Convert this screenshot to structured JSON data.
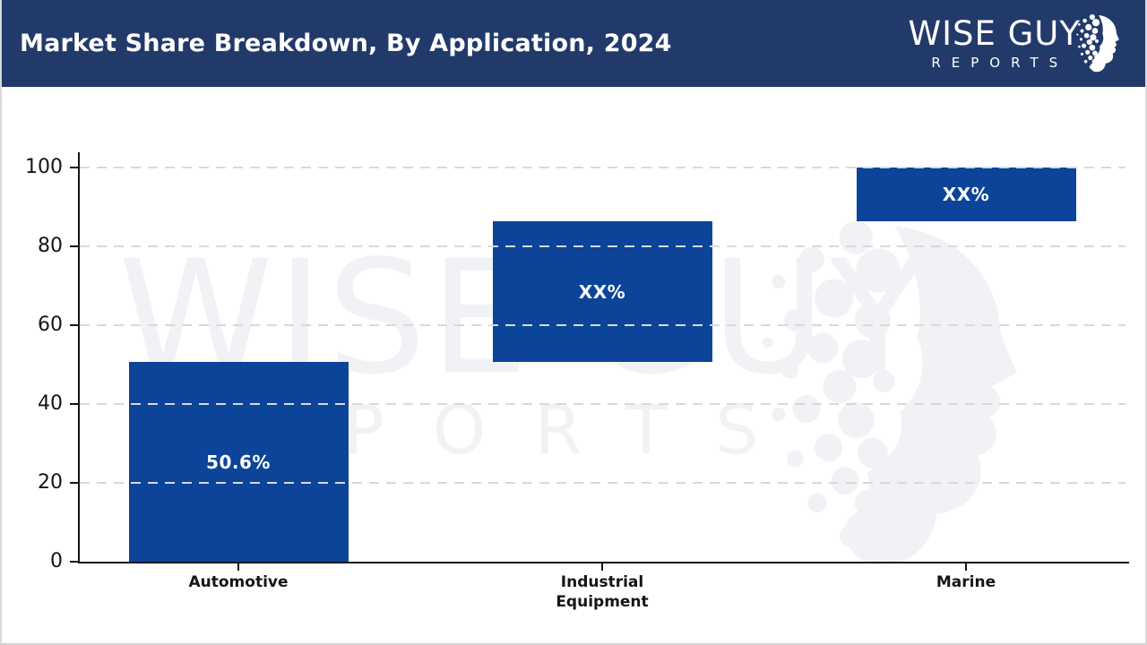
{
  "header": {
    "title": "Market Share Breakdown, By Application, 2024",
    "logo": {
      "line1": "WISE GUY",
      "line2": "REPORTS"
    },
    "bg_color": "#213a6a"
  },
  "watermark": {
    "line1": "WISE GUY",
    "line2": "REPORTS"
  },
  "chart_data": {
    "type": "bar",
    "subtype": "floating-waterfall-segments",
    "title": "Market Share Breakdown, By Application, 2024",
    "categories": [
      "Automotive",
      "Industrial Equipment",
      "Marine"
    ],
    "segments": [
      {
        "category": "Automotive",
        "start": 0,
        "end": 50.6,
        "label": "50.6%"
      },
      {
        "category": "Industrial Equipment",
        "start": 50.6,
        "end": 86.4,
        "label": "XX%"
      },
      {
        "category": "Marine",
        "start": 86.4,
        "end": 100,
        "label": "XX%"
      }
    ],
    "xlabel": "",
    "ylabel": "",
    "ylim": [
      0,
      100
    ],
    "yticks": [
      0,
      20,
      40,
      60,
      80,
      100
    ],
    "grid": "horizontal-dashed",
    "legend": "none",
    "bar_color": "#0b4499",
    "bar_label_color": "#ffffff",
    "axis_color": "#151515",
    "gridline_color": "#d9d9d9"
  }
}
